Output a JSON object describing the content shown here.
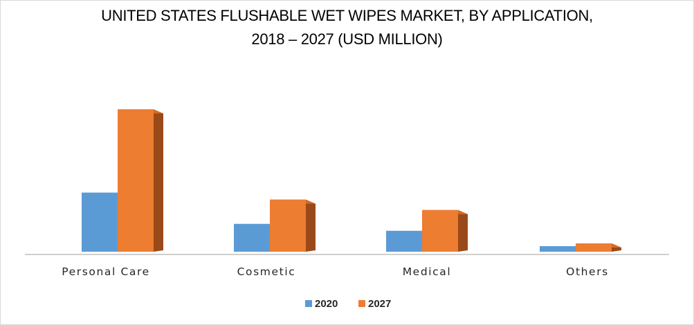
{
  "chart_data": {
    "type": "bar",
    "title_lines": [
      "UNITED STATES FLUSHABLE WET WIPES MARKET, BY APPLICATION,",
      "2018 – 2027 (USD MILLION)"
    ],
    "categories": [
      "Personal Care",
      "Cosmetic",
      "Medical",
      "Others"
    ],
    "series": [
      {
        "name": "2020",
        "values": [
          85,
          40,
          30,
          8
        ]
      },
      {
        "name": "2027",
        "values": [
          205,
          75,
          60,
          12
        ]
      }
    ],
    "ylim": [
      0,
      220
    ],
    "grid": false,
    "legend_position": "bottom",
    "colors": {
      "2020": {
        "front": "#5b9bd5",
        "top": "#4a8ac6",
        "side": "#2e5d8a"
      },
      "2027": {
        "front": "#ed7d31",
        "top": "#d66a22",
        "side": "#9a4a1a"
      },
      "axis": "#bfbfbf"
    }
  }
}
